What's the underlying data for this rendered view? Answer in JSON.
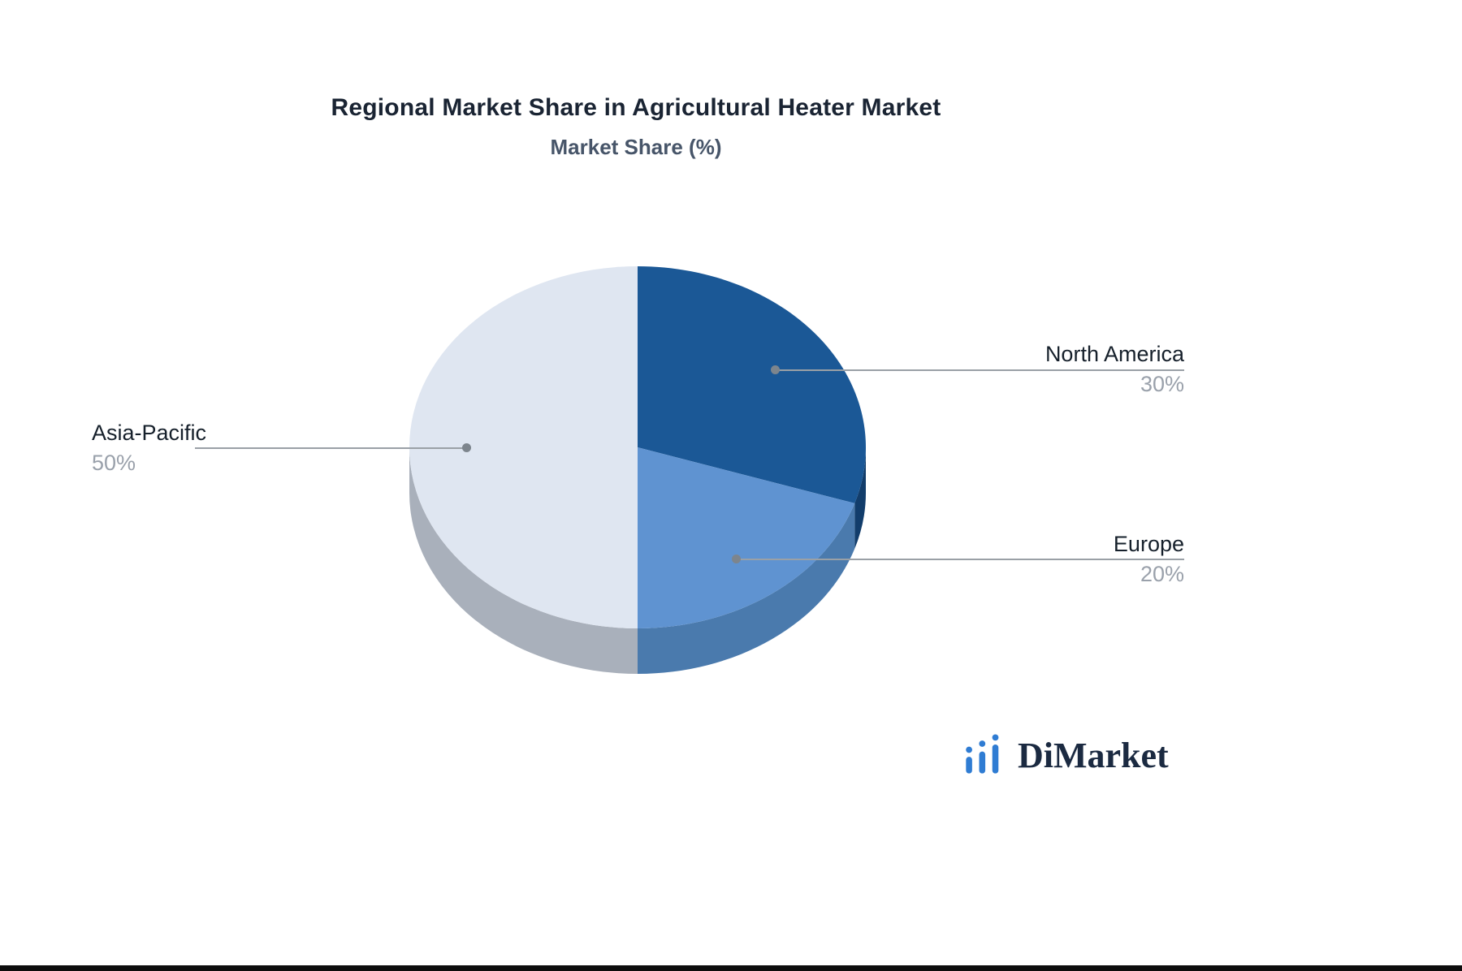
{
  "title": "Regional Market Share in Agricultural Heater Market",
  "subtitle": "Market Share (%)",
  "brand": {
    "name": "DiMarket"
  },
  "chart_data": {
    "type": "pie",
    "title": "Regional Market Share in Agricultural Heater Market",
    "subtitle": "Market Share (%)",
    "unit": "%",
    "style": "3d-pie",
    "start_angle_deg": -90,
    "direction": "clockwise",
    "legend_position": "none",
    "labels_style": "callout-lines",
    "slices": [
      {
        "label": "North America",
        "value": 30,
        "display": "30%",
        "color": "#1b5896",
        "depth_color": "#123d6b"
      },
      {
        "label": "Europe",
        "value": 20,
        "display": "20%",
        "color": "#5f93d1",
        "depth_color": "#4a7aad"
      },
      {
        "label": "Asia-Pacific",
        "value": 50,
        "display": "50%",
        "color": "#dfe6f1",
        "depth_color": "#a9b0bb"
      }
    ],
    "callout_line_color": "#9aa0a6",
    "label_color": "#16202b",
    "value_color": "#9aa1ab"
  }
}
